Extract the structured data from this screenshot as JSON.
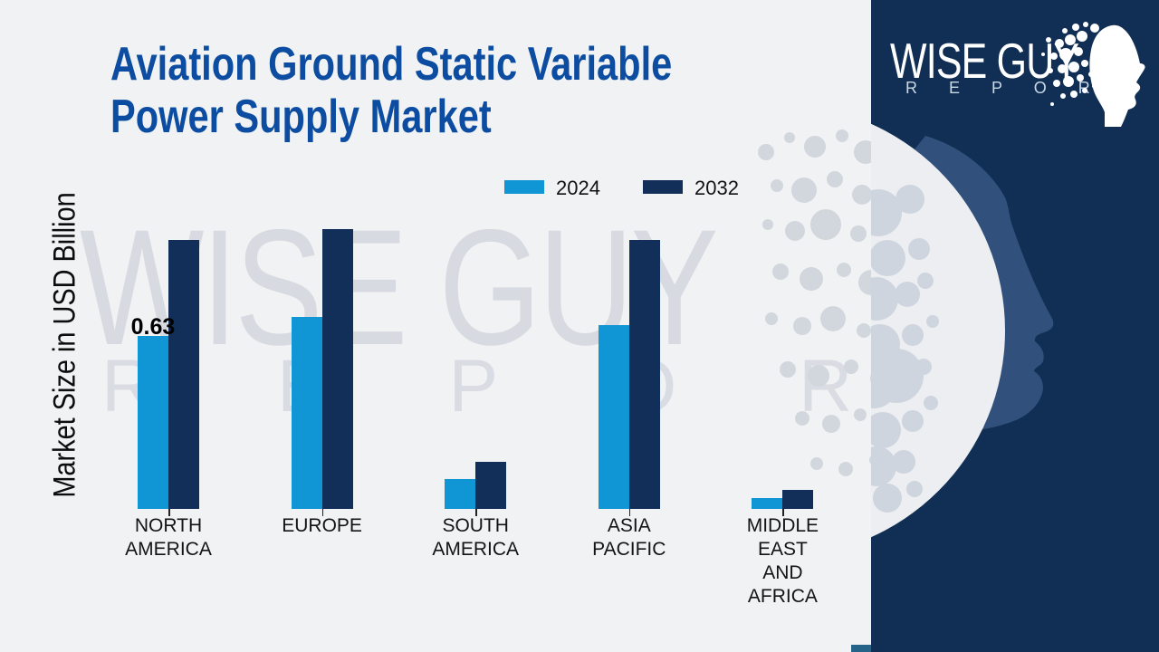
{
  "title": {
    "line1": "Aviation Ground Static Variable",
    "line2": "Power Supply Market",
    "color": "#0d4da1"
  },
  "chart_data": {
    "type": "bar",
    "title": "Aviation Ground Static Variable Power Supply Market",
    "ylabel": "Market Size in USD Billion",
    "unit": "USD Billion",
    "categories": [
      "NORTH AMERICA",
      "EUROPE",
      "SOUTH AMERICA",
      "ASIA PACIFIC",
      "MIDDLE EAST AND AFRICA"
    ],
    "category_label_lines": [
      [
        "NORTH",
        "AMERICA"
      ],
      [
        "EUROPE"
      ],
      [
        "SOUTH",
        "AMERICA"
      ],
      [
        "ASIA",
        "PACIFIC"
      ],
      [
        "MIDDLE",
        "EAST",
        "AND",
        "AFRICA"
      ]
    ],
    "series": [
      {
        "name": "2024",
        "color": "#1095d5",
        "values": [
          0.63,
          0.7,
          0.11,
          0.67,
          0.04
        ]
      },
      {
        "name": "2032",
        "color": "#122f5a",
        "values": [
          0.98,
          1.02,
          0.17,
          0.98,
          0.07
        ]
      }
    ],
    "data_labels": [
      {
        "series": "2024",
        "category": "NORTH AMERICA",
        "value": "0.63"
      }
    ],
    "legend_position": "top",
    "grid": false,
    "ylim": [
      0,
      1.1
    ]
  },
  "brand": {
    "name_top": "WISE GUY",
    "name_bottom": "R E P O R T S",
    "watermark_line1": "WISE GUY",
    "watermark_line2": "R E P O R T S",
    "panel_color": "#112e54",
    "accent_chip_color": "#256488"
  },
  "icons": {
    "brand_face": "human-head-profile-with-dots-icon",
    "panel_face": "head-profile-silhouette-icon",
    "watermark_dots": "dissolving-dots-pattern"
  },
  "colors": {
    "background": "#f1f2f4",
    "bar_2024": "#1095d5",
    "bar_2032": "#122f5a",
    "title_blue": "#0d4da1",
    "panel_navy": "#112e54",
    "panel_face_blue": "#32507c",
    "panel_circle": "#eceef1",
    "watermark_gray": "#d7dae0",
    "teal_chip": "#256488"
  }
}
